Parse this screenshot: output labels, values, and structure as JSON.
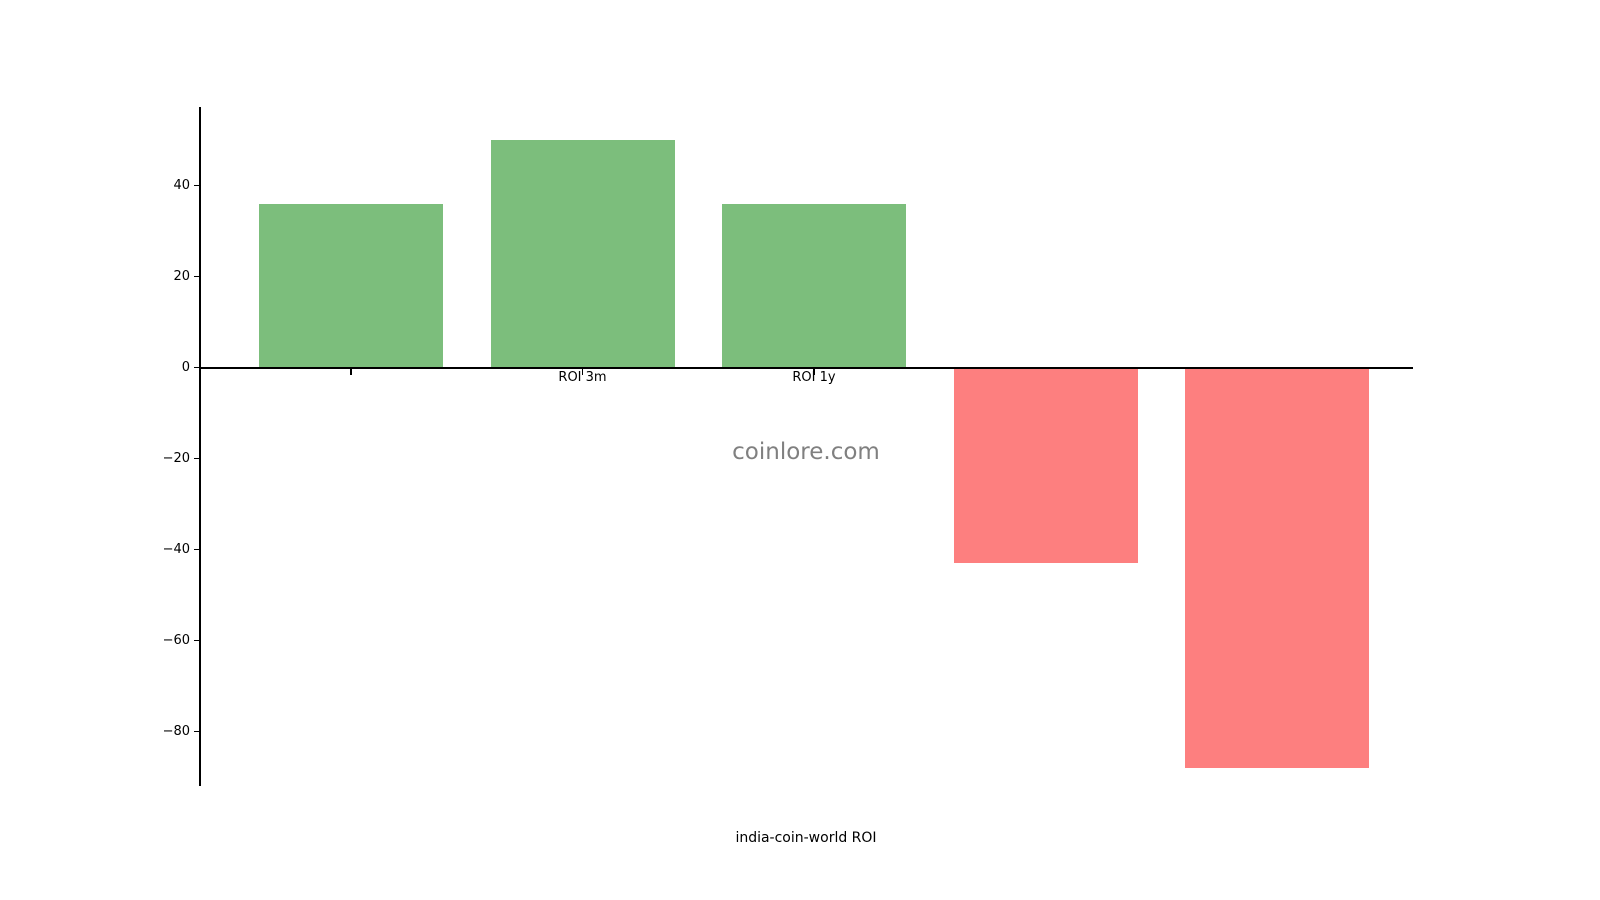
{
  "chart_data": {
    "type": "bar",
    "title": "",
    "xlabel": "india-coin-world ROI",
    "ylabel": "",
    "watermark": "coinlore.com",
    "categories": [
      "",
      "ROI 3m",
      "ROI 1y",
      "",
      ""
    ],
    "values": [
      36,
      50,
      36,
      -43,
      -88
    ],
    "xtick_visible": [
      true,
      true,
      true,
      false,
      false
    ],
    "yticks": [
      {
        "label": "40",
        "value": 40
      },
      {
        "label": "20",
        "value": 20
      },
      {
        "label": "0",
        "value": 0
      },
      {
        "label": "−20",
        "value": -20
      },
      {
        "label": "−40",
        "value": -40
      },
      {
        "label": "−60",
        "value": -60
      },
      {
        "label": "−80",
        "value": -80
      }
    ],
    "ylim": [
      -91.9,
      57.3
    ],
    "grid": false,
    "legend": "none",
    "colors": {
      "positive": "#7cbe7c",
      "negative": "#fd7f7f",
      "axis": "#000000",
      "tick_label": "#000000",
      "watermark": "#808080",
      "xlabel_color": "#000000"
    }
  }
}
